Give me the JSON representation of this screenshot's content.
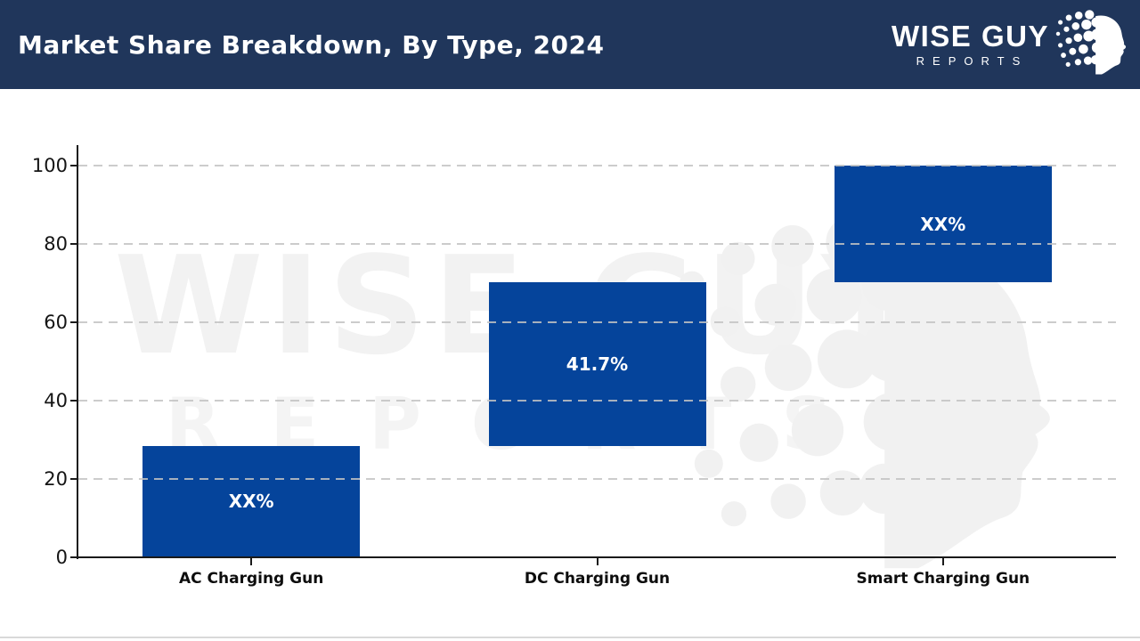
{
  "header": {
    "title": "Market Share Breakdown, By Type, 2024",
    "background_color": "#20365B",
    "logo": {
      "line1": "WISE GUY",
      "line2": "REPORTS"
    }
  },
  "watermark": {
    "line1": "WISE GUY",
    "line2": "REPORTS"
  },
  "chart_data": {
    "type": "bar",
    "variant": "floating-waterfall",
    "title": "Market Share Breakdown, By Type, 2024",
    "categories": [
      "AC Charging Gun",
      "DC Charging Gun",
      "Smart Charging Gun"
    ],
    "segments": [
      {
        "category": "AC Charging Gun",
        "start": 0,
        "end": 28.5,
        "height": 28.5,
        "label": "XX%"
      },
      {
        "category": "DC Charging Gun",
        "start": 28.5,
        "end": 70.2,
        "height": 41.7,
        "label": "41.7%"
      },
      {
        "category": "Smart Charging Gun",
        "start": 70.2,
        "end": 100,
        "height": 29.8,
        "label": "XX%"
      }
    ],
    "xlabel": "",
    "ylabel": "",
    "ylim": [
      0,
      100
    ],
    "yticks": [
      0,
      20,
      40,
      60,
      80,
      100
    ],
    "grid": "horizontal-dashed",
    "legend": "none",
    "bar_color": "#05449B",
    "bar_label_color": "#ffffff",
    "axis_color": "#1a1a1a",
    "grid_color": "#c9c9c9"
  }
}
